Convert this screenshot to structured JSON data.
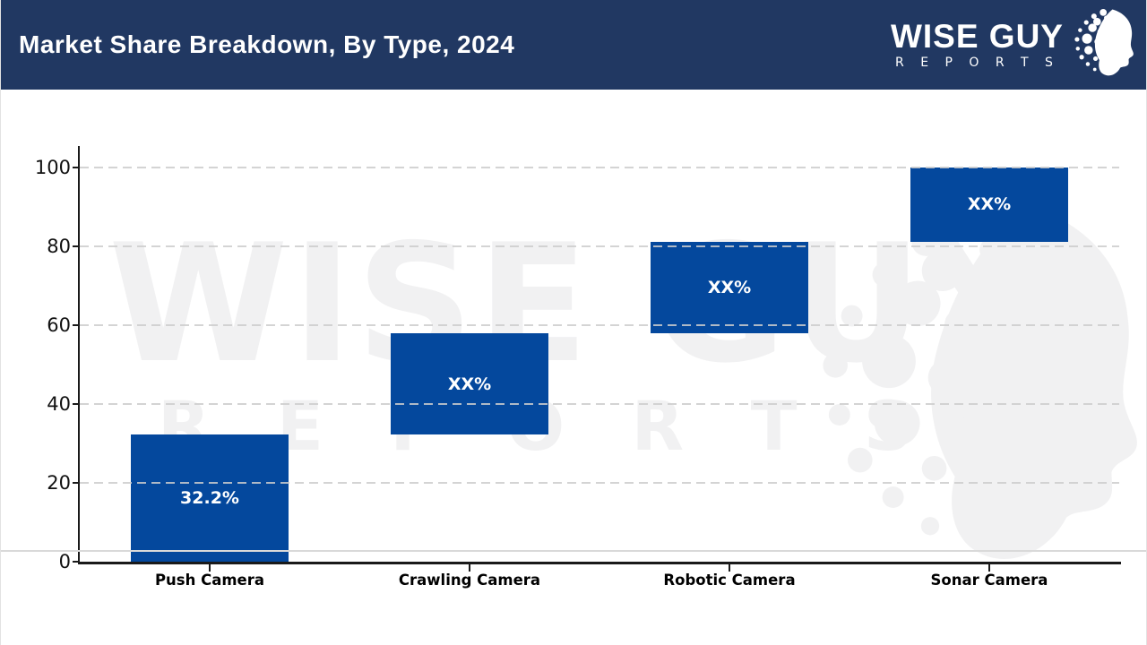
{
  "header": {
    "title": "Market Share Breakdown, By Type, 2024",
    "logo_line1": "WISE GUY",
    "logo_line2": "R E P O R T S"
  },
  "watermark": {
    "line1": "WISE GUY",
    "line2": "R E P O R T S"
  },
  "colors": {
    "header_bg": "#213862",
    "bar": "#04489D",
    "grid": "#CDCDCD",
    "watermark": "#F1F1F2",
    "bar_label_text": "#FFFFFF"
  },
  "chart_data": {
    "type": "bar",
    "variant": "waterfall",
    "title": "Market Share Breakdown, By Type, 2024",
    "categories": [
      "Push Camera",
      "Crawling Camera",
      "Robotic Camera",
      "Sonar Camera"
    ],
    "values": [
      32.2,
      25.8,
      23.2,
      18.8
    ],
    "segments": [
      {
        "category": "Push Camera",
        "start": 0,
        "end": 32.2,
        "label": "32.2%"
      },
      {
        "category": "Crawling Camera",
        "start": 32.2,
        "end": 58.0,
        "label": "XX%"
      },
      {
        "category": "Robotic Camera",
        "start": 58.0,
        "end": 81.2,
        "label": "XX%"
      },
      {
        "category": "Sonar Camera",
        "start": 81.2,
        "end": 100,
        "label": "XX%"
      }
    ],
    "yticks": [
      0,
      20,
      40,
      60,
      80,
      100
    ],
    "ylim": [
      0,
      100
    ],
    "xlabel": "",
    "ylabel": "",
    "grid": "horizontal-dashed",
    "legend": "none",
    "bar_color": "#04489D"
  }
}
